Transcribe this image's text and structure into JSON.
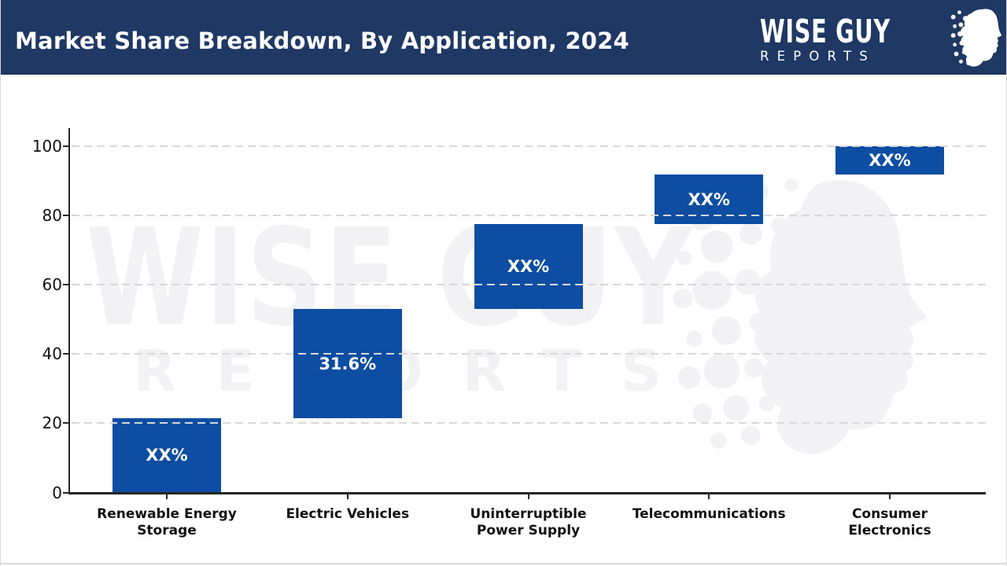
{
  "header": {
    "title": "Market Share Breakdown, By Application, 2024",
    "logo": {
      "wordmark": "WISE GUY",
      "sub": "REPORTS"
    }
  },
  "watermark": {
    "wordmark": "WISE GUY",
    "sub": "REPORTS"
  },
  "chart_data": {
    "type": "bar",
    "variant": "waterfall",
    "title": "Market Share Breakdown, By Application, 2024",
    "categories": [
      "Renewable Energy Storage",
      "Electric Vehicles",
      "Uninterruptible Power Supply",
      "Telecommunications",
      "Consumer Electronics"
    ],
    "category_label_lines": [
      [
        "Renewable Energy",
        "Storage"
      ],
      [
        "Electric Vehicles"
      ],
      [
        "Uninterruptible",
        "Power Supply"
      ],
      [
        "Telecommunications"
      ],
      [
        "Consumer",
        "Electronics"
      ]
    ],
    "series": [
      {
        "name": "Market share (%)",
        "bar_starts": [
          0,
          21.4,
          53.0,
          77.5,
          91.8
        ],
        "bar_ends": [
          21.4,
          53.0,
          77.5,
          91.8,
          100.0
        ],
        "bar_labels": [
          "XX%",
          "31.6%",
          "XX%",
          "XX%",
          "XX%"
        ]
      }
    ],
    "xlabel": "",
    "ylabel": "",
    "ylim": [
      0,
      105
    ],
    "yticks": [
      0,
      20,
      40,
      60,
      80,
      100
    ],
    "grid": "horizontal-dashed",
    "legend": "none",
    "colors": {
      "bar": "#0d4da2",
      "bar_label": "#ffffff",
      "grid": "#d8d8d8",
      "axis": "#262626",
      "tick_label": "#111111",
      "header_bg": "#1f3864",
      "header_text": "#ffffff",
      "watermark": "#f2f2f4"
    }
  }
}
